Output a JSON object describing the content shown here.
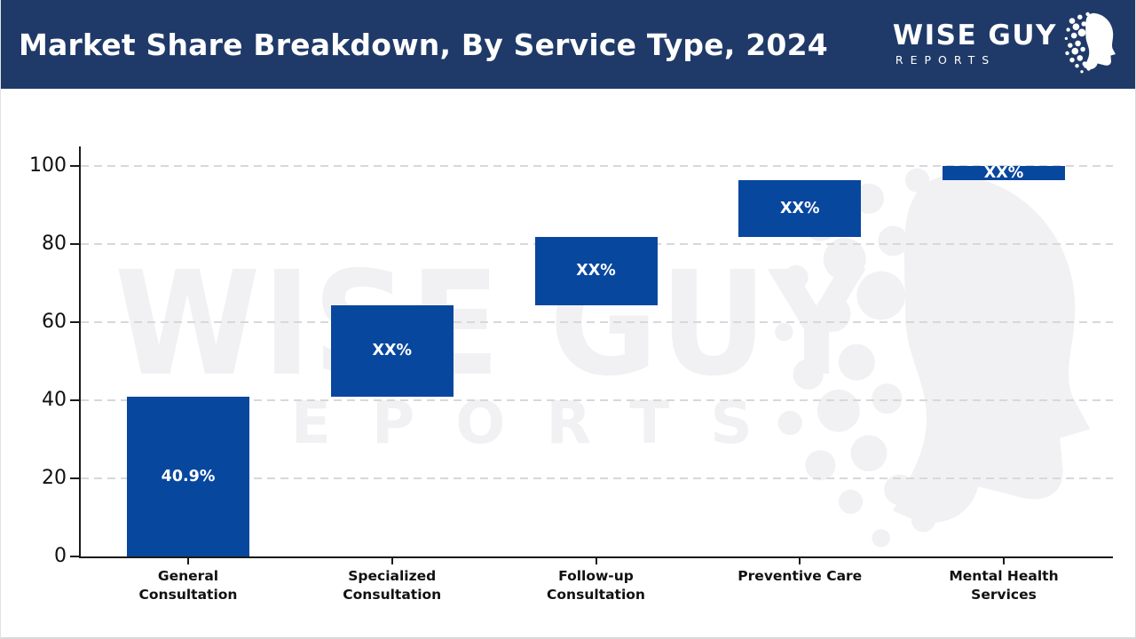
{
  "header": {
    "title": "Market Share Breakdown, By Service Type, 2024",
    "brand": {
      "line1": "WISE GUY",
      "line2": "REPORTS",
      "icon": "dotted-head-profile-icon"
    }
  },
  "watermark": {
    "line1": "WISE GUY",
    "line2": "REPORTS",
    "icon": "dotted-head-profile-icon"
  },
  "colors": {
    "header_bg": "#1F3A68",
    "bar": "#08479E",
    "grid": "#D8D8D8",
    "axis": "#1A1A1A",
    "watermark": "#F1F1F4",
    "label_text": "#FFFFFF"
  },
  "chart_data": {
    "type": "bar",
    "variant": "waterfall",
    "title": "Market Share Breakdown, By Service Type, 2024",
    "categories": [
      "General Consultation",
      "Specialized Consultation",
      "Follow-up Consultation",
      "Preventive Care",
      "Mental Health Services"
    ],
    "categories_lines": [
      [
        "General",
        "Consultation"
      ],
      [
        "Specialized",
        "Consultation"
      ],
      [
        "Follow-up",
        "Consultation"
      ],
      [
        "Preventive Care"
      ],
      [
        "Mental Health",
        "Services"
      ]
    ],
    "bars": [
      {
        "label": "40.9%",
        "start": 0,
        "end": 40.9
      },
      {
        "label": "XX%",
        "start": 40.9,
        "end": 64.4
      },
      {
        "label": "XX%",
        "start": 64.4,
        "end": 81.9
      },
      {
        "label": "XX%",
        "start": 81.9,
        "end": 96.3
      },
      {
        "label": "XX%",
        "start": 96.3,
        "end": 100
      }
    ],
    "yticks": [
      0,
      20,
      40,
      60,
      80,
      100
    ],
    "ylim": [
      0,
      105
    ],
    "xlabel": "",
    "ylabel": "",
    "grid": "dashed-horizontal",
    "legend": "none"
  }
}
